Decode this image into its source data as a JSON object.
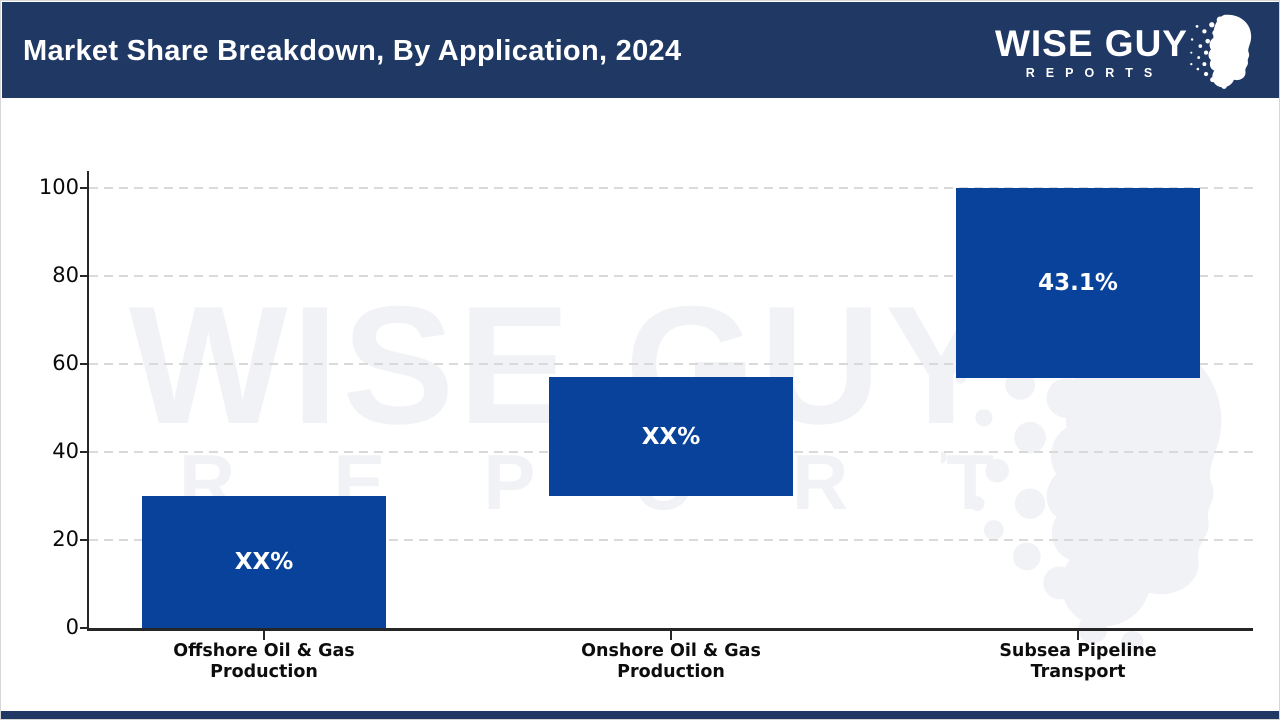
{
  "header": {
    "title": "Market Share Breakdown, By Application, 2024",
    "logo": {
      "line1": "WISE GUY",
      "line2": "REPORTS"
    }
  },
  "watermark": {
    "line1": "WISE GUY",
    "line2": "REPORTS"
  },
  "chart_data": {
    "type": "bar",
    "variant": "floating-segment-breakdown",
    "title": "Market Share Breakdown, By Application, 2024",
    "categories": [
      "Offshore Oil & Gas Production",
      "Onshore Oil & Gas Production",
      "Subsea Pipeline Transport"
    ],
    "category_lines": [
      [
        "Offshore Oil & Gas",
        "Production"
      ],
      [
        "Onshore Oil & Gas",
        "Production"
      ],
      [
        "Subsea Pipeline",
        "Transport"
      ]
    ],
    "bars": [
      {
        "category": "Offshore Oil & Gas Production",
        "start": 0,
        "end": 30,
        "value": 30,
        "label": "XX%"
      },
      {
        "category": "Onshore Oil & Gas Production",
        "start": 30,
        "end": 57,
        "value": 27,
        "label": "XX%"
      },
      {
        "category": "Subsea Pipeline Transport",
        "start": 56.9,
        "end": 100,
        "value": 43.1,
        "label": "43.1%"
      }
    ],
    "yticks": [
      0,
      20,
      40,
      60,
      80,
      100
    ],
    "ylim": [
      0,
      110
    ],
    "xlabel": "",
    "ylabel": "",
    "grid": "horizontal-dashed",
    "legend": "none"
  },
  "colors": {
    "header_bg": "#1f3864",
    "footer_bg": "#1f3864",
    "bar": "#08429b",
    "bar_label": "#ffffff",
    "grid": "#d9d9d9",
    "axis": "#262626",
    "watermark": "#f1f2f5",
    "title_text": "#ffffff"
  }
}
